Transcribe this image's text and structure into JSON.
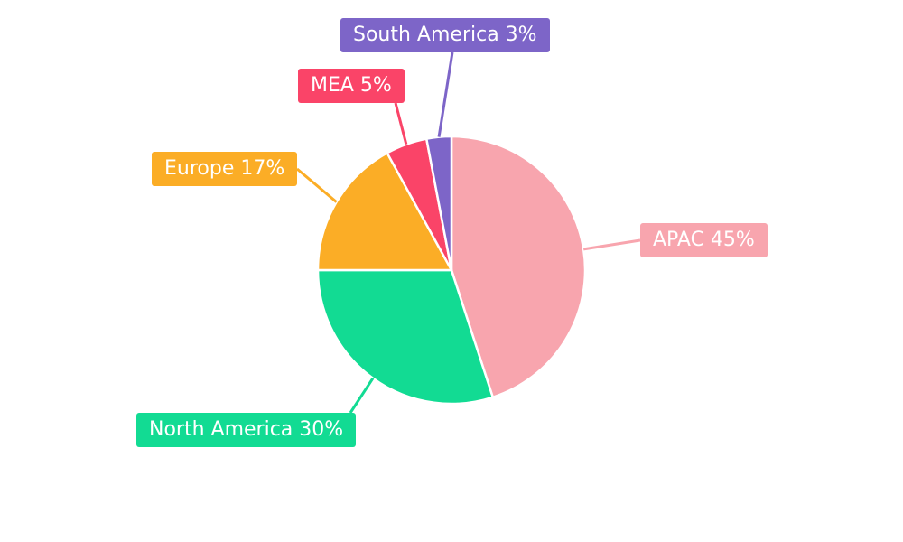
{
  "chart_data": {
    "type": "pie",
    "title": "",
    "labels": [
      "APAC",
      "North America",
      "Europe",
      "MEA",
      "South America"
    ],
    "values": [
      45,
      30,
      17,
      5,
      3
    ],
    "unit": "%",
    "colors": [
      "#F8A5AE",
      "#12DB93",
      "#FBAD26",
      "#FA4468",
      "#7D65C8"
    ],
    "label_texts": [
      "APAC 45%",
      "North America 30%",
      "Europe 17%",
      "MEA 5%",
      "South America 3%"
    ],
    "start_angle_deg": 0,
    "direction": "clockwise",
    "legend": "none",
    "label_style": "callout-boxes-with-leader-lines",
    "background": "#ffffff"
  }
}
